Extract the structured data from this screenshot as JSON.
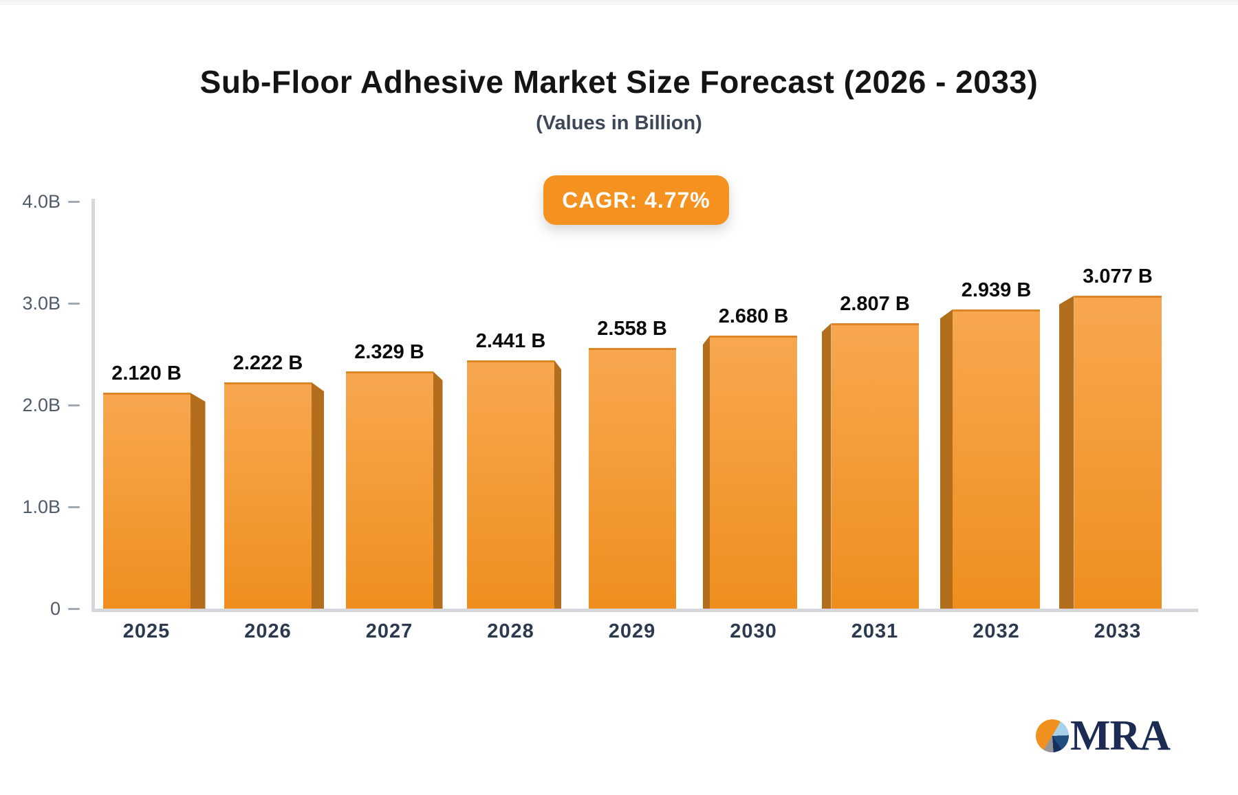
{
  "page": {
    "cagr_badge_label": "CAGR: 4.77%"
  },
  "chart_data": {
    "type": "bar",
    "title": "Sub-Floor Adhesive Market Size Forecast (2026 - 2033)",
    "subtitle": "(Values in Billion)",
    "cagr": "4.77%",
    "unit": "Billion",
    "categories": [
      "2025",
      "2026",
      "2027",
      "2028",
      "2029",
      "2030",
      "2031",
      "2032",
      "2033"
    ],
    "values": [
      2.12,
      2.222,
      2.329,
      2.441,
      2.558,
      2.68,
      2.807,
      2.939,
      3.077
    ],
    "value_labels": [
      "2.120 B",
      "2.222 B",
      "2.329 B",
      "2.441 B",
      "2.558 B",
      "2.680 B",
      "2.807 B",
      "2.939 B",
      "3.077 B"
    ],
    "xlabel": "",
    "ylabel": "",
    "ylim": [
      0,
      4.0
    ],
    "yticks": [
      {
        "value": 0,
        "label": "0"
      },
      {
        "value": 1.0,
        "label": "1.0B"
      },
      {
        "value": 2.0,
        "label": "2.0B"
      },
      {
        "value": 3.0,
        "label": "3.0B"
      },
      {
        "value": 4.0,
        "label": "4.0B"
      }
    ],
    "grid": false,
    "legend": false,
    "bar_style": "3d-perspective",
    "colors": {
      "accent": "#F5911E",
      "bar_face_top": "#F7A74F",
      "bar_face_bottom": "#EF8E1E",
      "bar_side": "#B26E1D",
      "bar_top_edge": "#DE8526",
      "axis_line": "#D6D7DC",
      "tick_text": "#505B69",
      "year_text": "#2C3A50",
      "value_text": "#0B0B0B",
      "title_text": "#141414",
      "subtitle_text": "#3E4757"
    }
  },
  "logo": {
    "text": "MRA",
    "navy": "#1B2B54",
    "pie_colors": {
      "orange": "#F0901F",
      "light_blue": "#A7D2EA",
      "steel_blue": "#1F4E7F",
      "navy": "#162F5B",
      "gray": "#97979B"
    }
  }
}
